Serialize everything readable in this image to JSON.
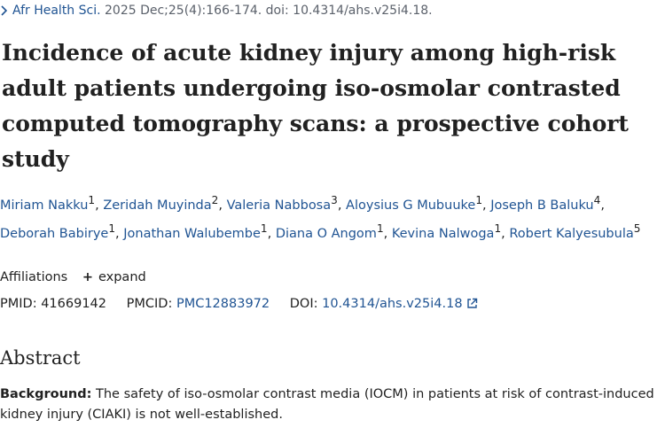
{
  "citation": {
    "journal": "Afr Health Sci.",
    "details": "2025 Dec;25(4):166-174. doi: 10.4314/ahs.v25i4.18."
  },
  "title": "Incidence of acute kidney injury among high-risk adult patients undergoing iso-osmolar contrasted computed tomography scans: a prospective cohort study",
  "authors": [
    {
      "name": "Miriam Nakku",
      "aff": "1"
    },
    {
      "name": "Zeridah Muyinda",
      "aff": "2"
    },
    {
      "name": "Valeria Nabbosa",
      "aff": "3"
    },
    {
      "name": "Aloysius G Mubuuke",
      "aff": "1"
    },
    {
      "name": "Joseph B Baluku",
      "aff": "4"
    },
    {
      "name": "Deborah Babirye",
      "aff": "1"
    },
    {
      "name": "Jonathan Walubembe",
      "aff": "1"
    },
    {
      "name": "Diana O Angom",
      "aff": "1"
    },
    {
      "name": "Kevina Nalwoga",
      "aff": "1"
    },
    {
      "name": "Robert Kalyesubula",
      "aff": "5"
    }
  ],
  "affiliations": {
    "label": "Affiliations",
    "expand_label": "expand"
  },
  "identifiers": {
    "pmid_label": "PMID:",
    "pmid": "41669142",
    "pmcid_label": "PMCID:",
    "pmcid": "PMC12883972",
    "doi_label": "DOI:",
    "doi": "10.4314/ahs.v25i4.18"
  },
  "abstract": {
    "heading": "Abstract",
    "background_label": "Background:",
    "background_text": " The safety of iso-osmolar contrast media (IOCM) in patients at risk of contrast-induced kidney injury (CIAKI) is not well-established."
  },
  "colors": {
    "link": "#205493",
    "text": "#212121",
    "muted": "#5b616b"
  },
  "icons": {
    "citation_toggle": "chevron-right-icon",
    "expand": "plus-icon",
    "doi_link": "external-link-icon"
  }
}
